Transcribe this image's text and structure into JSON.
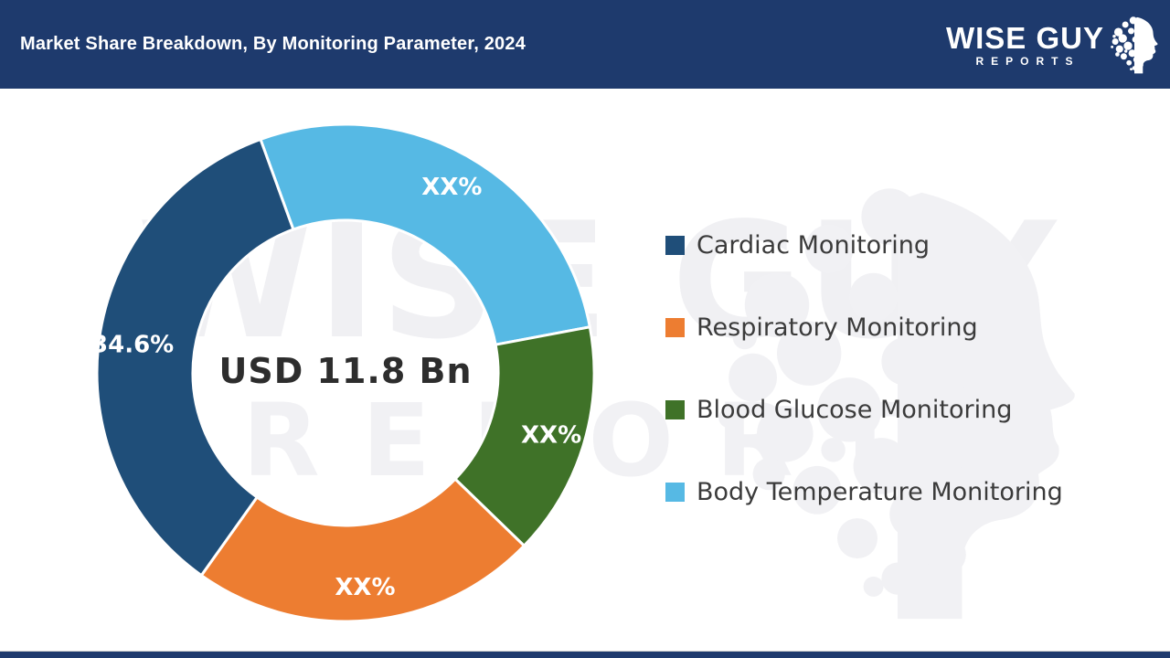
{
  "header": {
    "title": "Market Share Breakdown, By Monitoring Parameter, 2024",
    "bg_color": "#1e3a6d",
    "logo": {
      "line1": "WISE GUY",
      "line2": "REPORTS"
    }
  },
  "watermark": {
    "line1": "WISE GUY",
    "line2": "REPORTS"
  },
  "chart_data": {
    "type": "pie",
    "subtype": "donut",
    "title": "Market Share Breakdown, By Monitoring Parameter, 2024",
    "center_label": "USD 11.8 Bn",
    "legend_position": "right",
    "start_angle_clockwise_from_top_deg": -20,
    "slices": [
      {
        "label": "Cardiac Monitoring",
        "color": "#1f4e79",
        "display": "34.6%",
        "value_pct": 34.6
      },
      {
        "label": "Respiratory Monitoring",
        "color": "#ed7d31",
        "display": "XX%",
        "value_pct": 22.6
      },
      {
        "label": "Blood Glucose Monitoring",
        "color": "#3f7228",
        "display": "XX%",
        "value_pct": 15.2
      },
      {
        "label": "Body Temperature Monitoring",
        "color": "#56b9e4",
        "display": "XX%",
        "value_pct": 27.6
      }
    ]
  }
}
